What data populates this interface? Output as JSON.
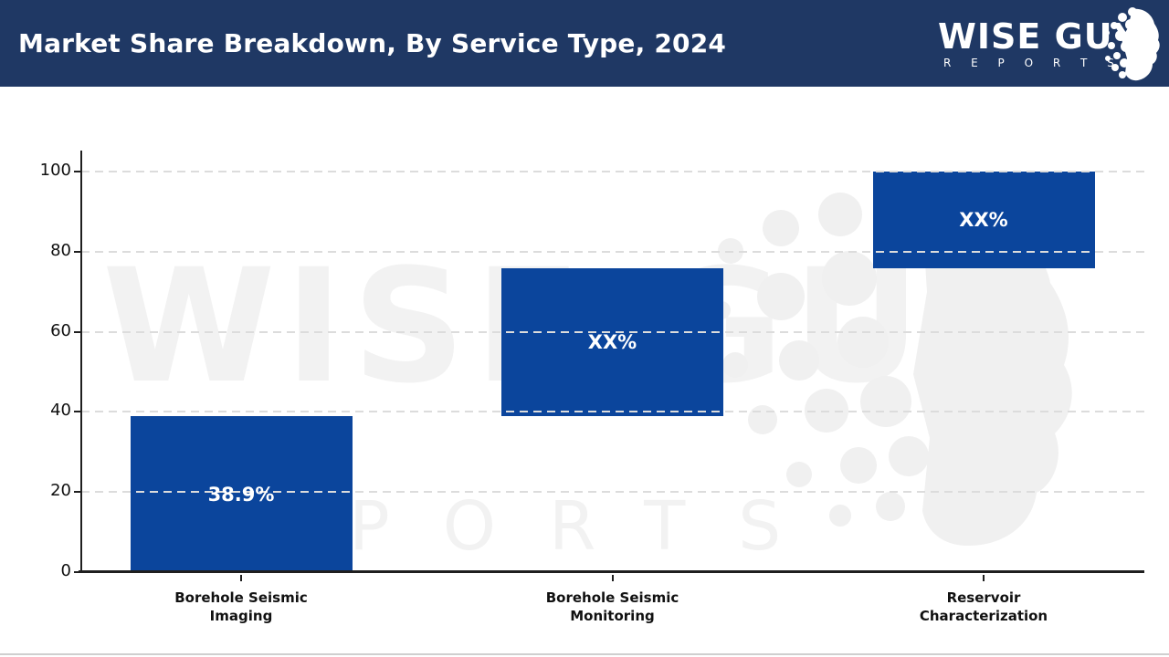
{
  "header": {
    "title": "Market Share Breakdown, By Service Type, 2024",
    "bg_color": "#1f3864",
    "logo": {
      "wordmark": "WISE GUY",
      "subtext": "R E P O R T S"
    }
  },
  "watermark": {
    "wordmark": "WISE GUY",
    "subtext": "REPORTS"
  },
  "chart_data": {
    "type": "bar",
    "variant": "floating-waterfall-percent",
    "title": "Market Share Breakdown, By Service Type, 2024",
    "categories": [
      {
        "name": "Borehole Seismic Imaging",
        "lines": [
          "Borehole Seismic",
          "Imaging"
        ]
      },
      {
        "name": "Borehole Seismic Monitoring",
        "lines": [
          "Borehole Seismic",
          "Monitoring"
        ]
      },
      {
        "name": "Reservoir Characterization",
        "lines": [
          "Reservoir",
          "Characterization"
        ]
      }
    ],
    "bars": [
      {
        "value_label": "38.9%",
        "start": 0,
        "end": 38.9
      },
      {
        "value_label": "XX%",
        "start": 38.9,
        "end": 75.9
      },
      {
        "value_label": "XX%",
        "start": 75.9,
        "end": 100
      }
    ],
    "ylim": [
      0,
      100
    ],
    "yticks": [
      0,
      20,
      40,
      60,
      80,
      100
    ],
    "grid": "horizontal-dashed",
    "legend": "none",
    "bar_color": "#0b459c",
    "bar_label_color": "#ffffff",
    "gridline_color": "#dcdcdc",
    "axis_color": "#1f1f1f"
  }
}
